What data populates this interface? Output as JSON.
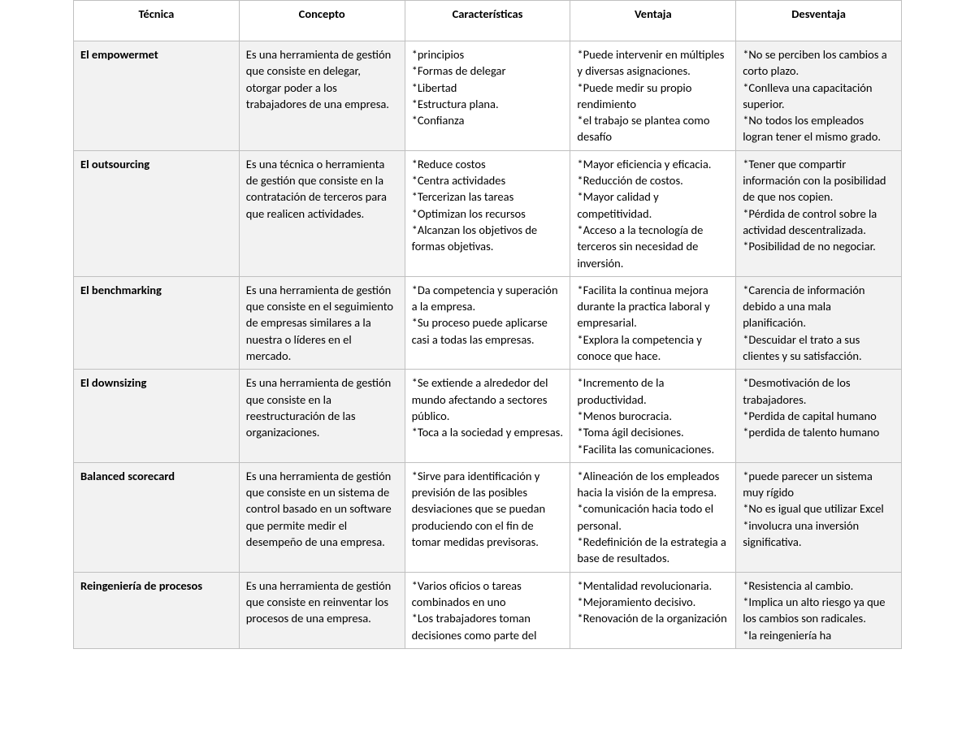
{
  "columns": [
    "Técnica",
    "Concepto",
    "Características",
    "Ventaja",
    "Desventaja"
  ],
  "col_widths_pct": [
    17,
    18,
    18,
    18,
    18
  ],
  "header_bg": "#ffffff",
  "shaded_bg": "#f2f2f2",
  "border_color": "#c0c0c0",
  "text_color": "#000000",
  "rows": [
    {
      "tecnica": "El empowermet",
      "concepto": "Es una herramienta de gestión que consiste en delegar, otorgar poder a los trabajadores de una empresa.",
      "caracteristicas": "*principios\n*Formas de delegar\n*Libertad\n*Estructura plana.\n*Confianza",
      "ventaja": "*Puede intervenir en múltiples y diversas asignaciones.\n*Puede medir su propio rendimiento\n*el trabajo se plantea como desafío",
      "desventaja": "*No se perciben los cambios a corto plazo.\n*Conlleva una capacitación superior.\n*No todos los empleados logran tener el mismo grado."
    },
    {
      "tecnica": "El outsourcing",
      "concepto": "Es una técnica o herramienta de gestión que consiste en la contratación de terceros para que realicen actividades.",
      "caracteristicas": "*Reduce costos\n*Centra actividades\n*Tercerizan las tareas\n*Optimizan los recursos\n*Alcanzan los objetivos de formas objetivas.",
      "ventaja": "*Mayor eficiencia y eficacia.\n*Reducción de costos.\n*Mayor calidad y competitividad.\n*Acceso a la tecnología de terceros sin necesidad de inversión.",
      "desventaja": "*Tener que compartir información con la posibilidad de que nos copien.\n*Pérdida de control sobre la actividad descentralizada.\n*Posibilidad de no negociar."
    },
    {
      "tecnica": "El benchmarking",
      "concepto": "Es una herramienta de gestión que consiste en el seguimiento de empresas similares a la nuestra o líderes en el mercado.",
      "caracteristicas": "*Da competencia y superación a la empresa.\n*Su proceso puede aplicarse casi a todas las empresas.",
      "ventaja": "*Facilita la continua mejora durante la practica laboral y empresarial.\n*Explora la competencia y conoce que hace.",
      "desventaja": "*Carencia de información debido a una mala planificación.\n*Descuidar el trato a sus clientes y su satisfacción."
    },
    {
      "tecnica": "El downsizing",
      "concepto": "Es una herramienta de gestión que consiste en la reestructuración de las organizaciones.",
      "caracteristicas": "*Se extiende a alrededor del mundo afectando a sectores público.\n*Toca a la sociedad y empresas.",
      "ventaja": "*Incremento de la productividad.\n*Menos burocracia.\n*Toma ágil decisiones.\n*Facilita las comunicaciones.",
      "desventaja": "*Desmotivación de los trabajadores.\n*Perdida de capital humano\n*perdida de talento humano"
    },
    {
      "tecnica": "Balanced scorecard",
      "concepto": "Es una herramienta de gestión que consiste en un sistema de control basado en un software que permite medir el desempeño de una empresa.",
      "caracteristicas": "*Sirve para identificación y previsión de las posibles desviaciones que se puedan produciendo con el fin de tomar medidas previsoras.",
      "ventaja": "*Alineación de los empleados hacia la visión de la empresa.\n*comunicación hacia todo el personal.\n*Redefinición de la estrategia a base de resultados.",
      "desventaja": "*puede parecer un sistema muy rígido\n*No es igual que utilizar Excel\n*involucra una inversión significativa."
    },
    {
      "tecnica": "Reingeniería de procesos",
      "concepto": "Es una herramienta de gestión que consiste en reinventar los procesos de una empresa.",
      "caracteristicas": "*Varios oficios o tareas combinados en uno\n*Los trabajadores toman decisiones como parte del",
      "ventaja": "*Mentalidad revolucionaria.\n*Mejoramiento decisivo.\n*Renovación de la organización",
      "desventaja": "*Resistencia al cambio.\n*Implica un alto riesgo ya que los cambios son radicales.\n*la reingeniería ha"
    }
  ]
}
